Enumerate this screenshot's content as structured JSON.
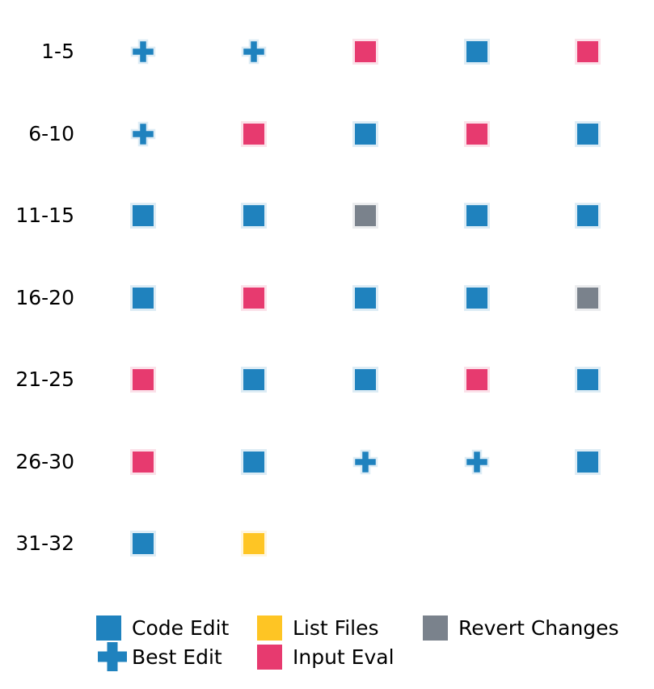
{
  "chart_data": {
    "type": "scatter",
    "legend_position": "bottom",
    "grid": false,
    "rows": [
      {
        "label": "1-5",
        "markers": [
          "best_edit",
          "best_edit",
          "input_eval",
          "code_edit",
          "input_eval"
        ]
      },
      {
        "label": "6-10",
        "markers": [
          "best_edit",
          "input_eval",
          "code_edit",
          "input_eval",
          "code_edit"
        ]
      },
      {
        "label": "11-15",
        "markers": [
          "code_edit",
          "code_edit",
          "revert_changes",
          "code_edit",
          "code_edit"
        ]
      },
      {
        "label": "16-20",
        "markers": [
          "code_edit",
          "input_eval",
          "code_edit",
          "code_edit",
          "revert_changes"
        ]
      },
      {
        "label": "21-25",
        "markers": [
          "input_eval",
          "code_edit",
          "code_edit",
          "input_eval",
          "code_edit"
        ]
      },
      {
        "label": "26-30",
        "markers": [
          "input_eval",
          "code_edit",
          "best_edit",
          "best_edit",
          "code_edit"
        ]
      },
      {
        "label": "31-32",
        "markers": [
          "code_edit",
          "list_files",
          null,
          null,
          null
        ]
      }
    ],
    "legend": {
      "rows": [
        [
          "code_edit",
          "list_files",
          "revert_changes"
        ],
        [
          "best_edit",
          "input_eval"
        ]
      ],
      "entries": {
        "code_edit": {
          "label": "Code Edit",
          "marker": "square",
          "color": "#1f82be"
        },
        "list_files": {
          "label": "List Files",
          "marker": "square",
          "color": "#fec524"
        },
        "revert_changes": {
          "label": "Revert Changes",
          "marker": "square",
          "color": "#7a828c"
        },
        "best_edit": {
          "label": "Best Edit",
          "marker": "plus",
          "color": "#1f82be"
        },
        "input_eval": {
          "label": "Input Eval",
          "marker": "square",
          "color": "#e73a6f"
        }
      }
    }
  }
}
